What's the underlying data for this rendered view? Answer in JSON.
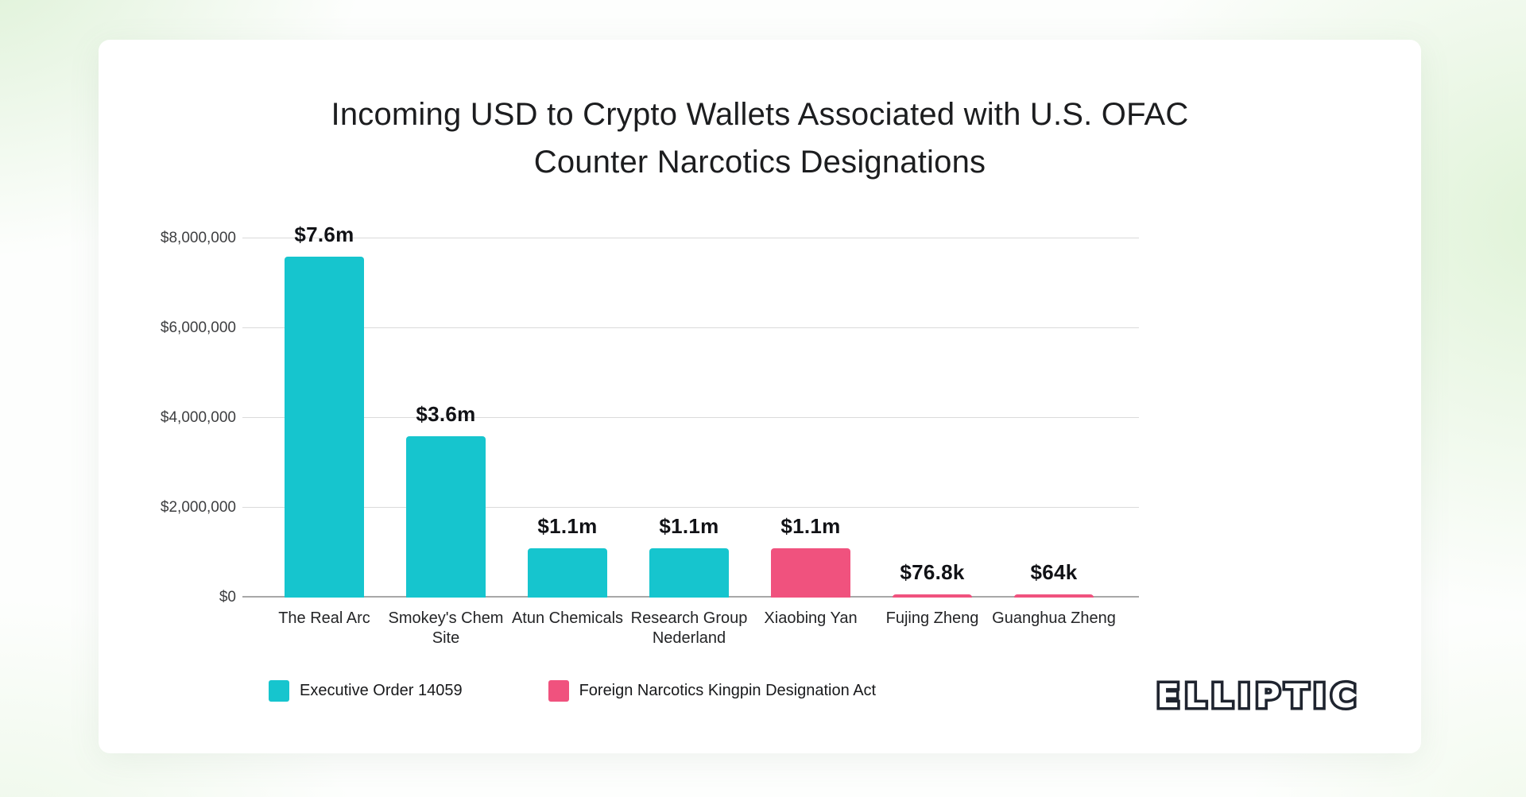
{
  "title_lines": {
    "line1": "Incoming USD to Crypto Wallets Associated with U.S. OFAC",
    "line2": "Counter Narcotics Designations"
  },
  "branding": {
    "logo_text": "ELLIPTIC"
  },
  "chart_data": {
    "type": "bar",
    "title": "Incoming USD to Crypto Wallets Associated with U.S. OFAC Counter Narcotics Designations",
    "categories": [
      "The Real Arc",
      "Smokey's Chem Site",
      "Atun Chemicals",
      "Research Group Nederland",
      "Xiaobing Yan",
      "Fujing Zheng",
      "Guanghua Zheng"
    ],
    "values": [
      7600000,
      3600000,
      1100000,
      1100000,
      1100000,
      76800,
      64000
    ],
    "bar_labels": [
      "$7.6m",
      "$3.6m",
      "$1.1m",
      "$1.1m",
      "$1.1m",
      "$76.8k",
      "$64k"
    ],
    "bar_series": [
      "Executive Order 14059",
      "Executive Order 14059",
      "Executive Order 14059",
      "Executive Order 14059",
      "Foreign Narcotics Kingpin Designation Act",
      "Foreign Narcotics Kingpin Designation Act",
      "Foreign Narcotics Kingpin Designation Act"
    ],
    "series_colors": {
      "Executive Order 14059": "#16c5ce",
      "Foreign Narcotics Kingpin Designation Act": "#f0527e"
    },
    "xlabel": "",
    "ylabel": "",
    "ylim": [
      0,
      8000000
    ],
    "y_ticks": [
      {
        "value": 0,
        "label": "$0"
      },
      {
        "value": 2000000,
        "label": "$2,000,000"
      },
      {
        "value": 4000000,
        "label": "$4,000,000"
      },
      {
        "value": 6000000,
        "label": "$6,000,000"
      },
      {
        "value": 8000000,
        "label": "$8,000,000"
      }
    ],
    "grid": true,
    "legend": [
      {
        "label": "Executive Order 14059",
        "color": "#16c5ce"
      },
      {
        "label": "Foreign Narcotics Kingpin Designation Act",
        "color": "#f0527e"
      }
    ],
    "legend_position": "bottom"
  }
}
